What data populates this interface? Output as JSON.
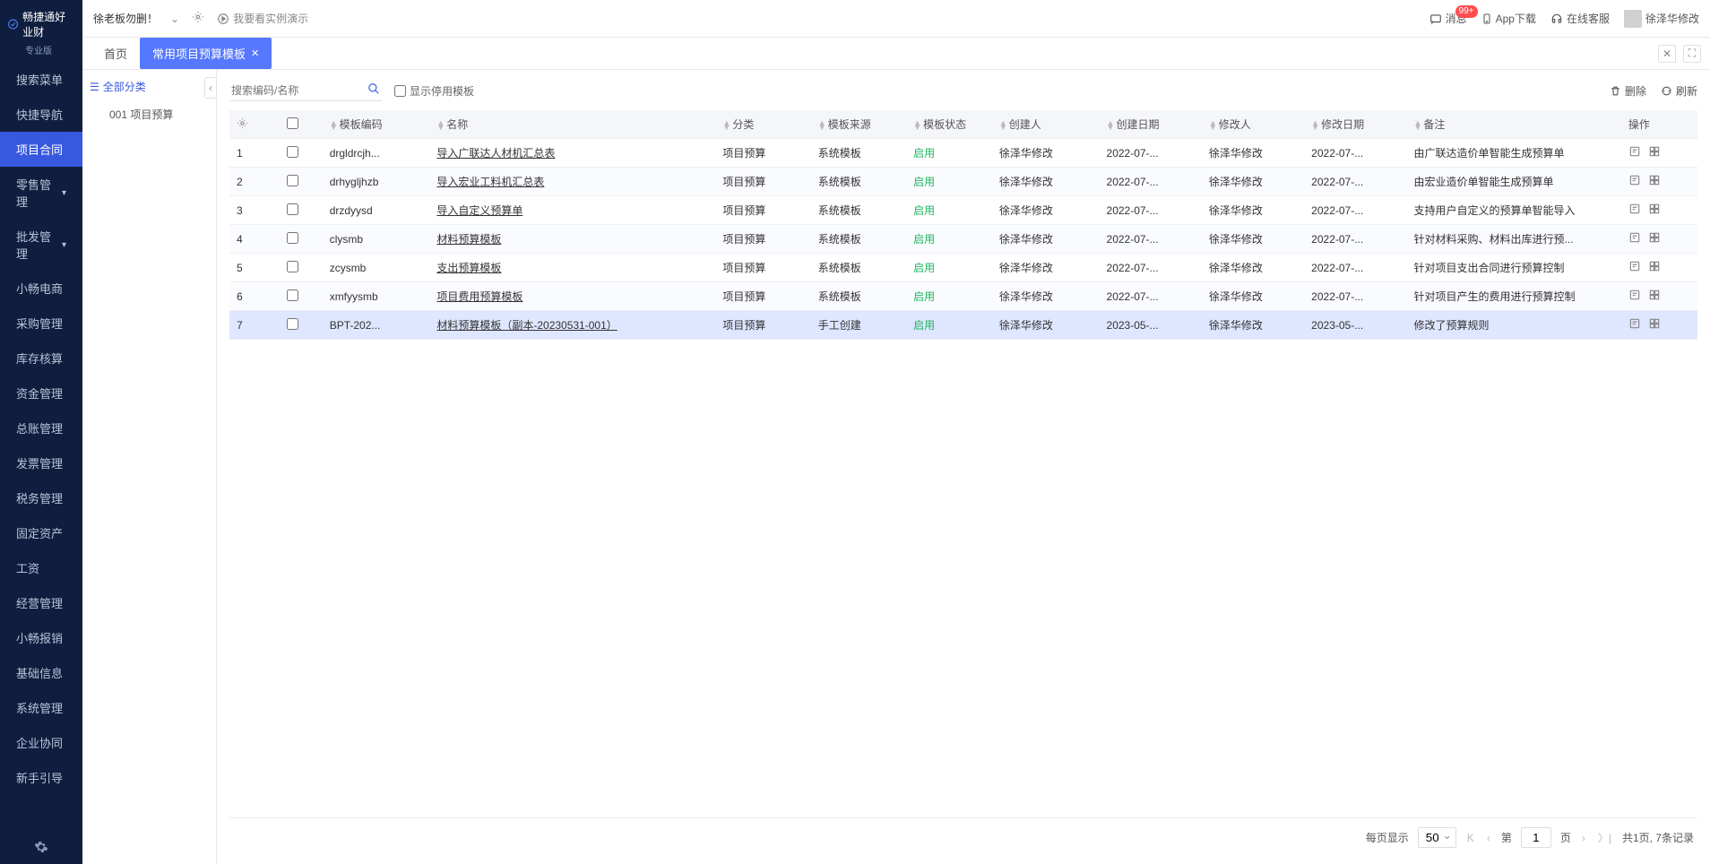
{
  "brand": {
    "name": "畅捷通好业财",
    "edition": "专业版"
  },
  "sidebar": {
    "items": [
      {
        "label": "搜索菜单",
        "expand": false
      },
      {
        "label": "快捷导航",
        "expand": false
      },
      {
        "label": "项目合同",
        "expand": false,
        "active": true
      },
      {
        "label": "零售管理",
        "expand": true
      },
      {
        "label": "批发管理",
        "expand": true
      },
      {
        "label": "小畅电商",
        "expand": false
      },
      {
        "label": "采购管理",
        "expand": false
      },
      {
        "label": "库存核算",
        "expand": false
      },
      {
        "label": "资金管理",
        "expand": false
      },
      {
        "label": "总账管理",
        "expand": false
      },
      {
        "label": "发票管理",
        "expand": false
      },
      {
        "label": "税务管理",
        "expand": false
      },
      {
        "label": "固定资产",
        "expand": false
      },
      {
        "label": "工资",
        "expand": false
      },
      {
        "label": "经营管理",
        "expand": false
      },
      {
        "label": "小畅报销",
        "expand": false
      },
      {
        "label": "基础信息",
        "expand": false
      },
      {
        "label": "系统管理",
        "expand": false
      },
      {
        "label": "企业协同",
        "expand": false
      },
      {
        "label": "新手引导",
        "expand": false
      }
    ]
  },
  "topbar": {
    "org": "徐老板勿删！",
    "demo": "我要看实例演示",
    "msg": "消息",
    "msg_badge": "99+",
    "app": "App下载",
    "service": "在线客服",
    "user": "徐泽华修改"
  },
  "tabs": {
    "items": [
      {
        "label": "首页",
        "closable": false
      },
      {
        "label": "常用项目预算模板",
        "closable": true,
        "active": true
      }
    ]
  },
  "category": {
    "all": "全部分类",
    "items": [
      {
        "label": "001 项目预算"
      }
    ]
  },
  "toolbar": {
    "search_placeholder": "搜索编码/名称",
    "show_disabled": "显示停用模板",
    "delete": "删除",
    "refresh": "刷新"
  },
  "columns": {
    "code": "模板编码",
    "name": "名称",
    "category": "分类",
    "source": "模板来源",
    "status": "模板状态",
    "creator": "创建人",
    "create_date": "创建日期",
    "modifier": "修改人",
    "modify_date": "修改日期",
    "remark": "备注",
    "op": "操作"
  },
  "rows": [
    {
      "idx": "1",
      "code": "drgldrcjh...",
      "name": "导入广联达人材机汇总表",
      "cat": "项目预算",
      "src": "系统模板",
      "status": "启用",
      "creator": "徐泽华修改",
      "cdate": "2022-07-...",
      "modifier": "徐泽华修改",
      "mdate": "2022-07-...",
      "remark": "由广联达造价单智能生成预算单"
    },
    {
      "idx": "2",
      "code": "drhygljhzb",
      "name": "导入宏业工料机汇总表",
      "cat": "项目预算",
      "src": "系统模板",
      "status": "启用",
      "creator": "徐泽华修改",
      "cdate": "2022-07-...",
      "modifier": "徐泽华修改",
      "mdate": "2022-07-...",
      "remark": "由宏业造价单智能生成预算单"
    },
    {
      "idx": "3",
      "code": "drzdyysd",
      "name": "导入自定义预算单",
      "cat": "项目预算",
      "src": "系统模板",
      "status": "启用",
      "creator": "徐泽华修改",
      "cdate": "2022-07-...",
      "modifier": "徐泽华修改",
      "mdate": "2022-07-...",
      "remark": "支持用户自定义的预算单智能导入"
    },
    {
      "idx": "4",
      "code": "clysmb",
      "name": "材料预算模板",
      "cat": "项目预算",
      "src": "系统模板",
      "status": "启用",
      "creator": "徐泽华修改",
      "cdate": "2022-07-...",
      "modifier": "徐泽华修改",
      "mdate": "2022-07-...",
      "remark": "针对材料采购、材料出库进行预..."
    },
    {
      "idx": "5",
      "code": "zcysmb",
      "name": "支出预算模板",
      "cat": "项目预算",
      "src": "系统模板",
      "status": "启用",
      "creator": "徐泽华修改",
      "cdate": "2022-07-...",
      "modifier": "徐泽华修改",
      "mdate": "2022-07-...",
      "remark": "针对项目支出合同进行预算控制"
    },
    {
      "idx": "6",
      "code": "xmfyysmb",
      "name": "项目费用预算模板",
      "cat": "项目预算",
      "src": "系统模板",
      "status": "启用",
      "creator": "徐泽华修改",
      "cdate": "2022-07-...",
      "modifier": "徐泽华修改",
      "mdate": "2022-07-...",
      "remark": "针对项目产生的费用进行预算控制"
    },
    {
      "idx": "7",
      "code": "BPT-202...",
      "name": "材料预算模板（副本-20230531-001）",
      "cat": "项目预算",
      "src": "手工创建",
      "status": "启用",
      "creator": "徐泽华修改",
      "cdate": "2023-05-...",
      "modifier": "徐泽华修改",
      "mdate": "2023-05-...",
      "remark": "修改了预算规则",
      "selected": true
    }
  ],
  "pager": {
    "per_page_label": "每页显示",
    "per_page": "50",
    "page_prefix": "第",
    "page": "1",
    "page_suffix": "页",
    "total": "共1页, 7条记录"
  }
}
